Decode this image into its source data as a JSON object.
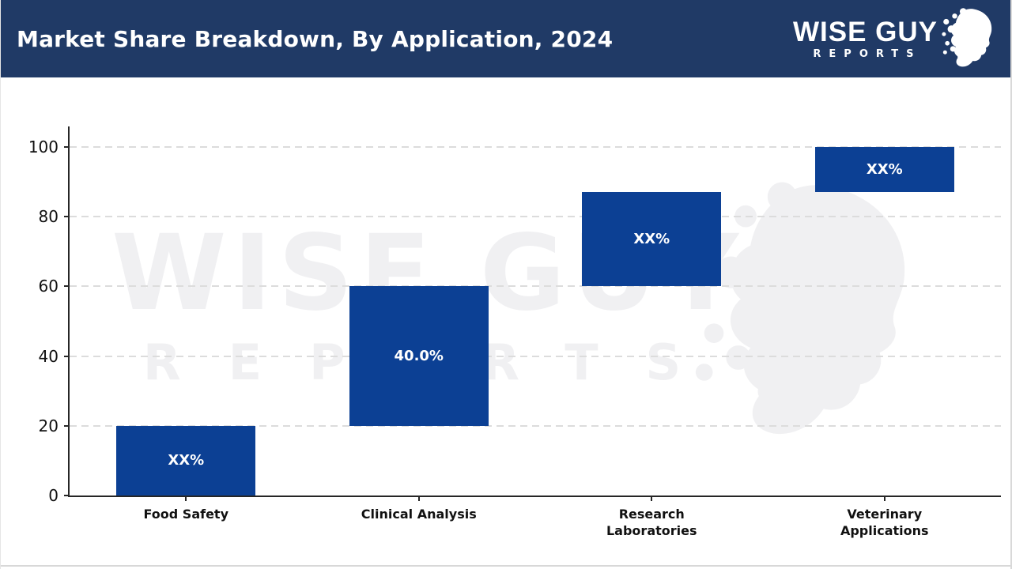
{
  "header": {
    "title": "Market Share Breakdown, By Application, 2024",
    "logo": {
      "line1": "WISE GUY",
      "line2": "REPORTS"
    }
  },
  "watermark": {
    "line1": "WISE GUY",
    "line2": "REPORTS"
  },
  "colors": {
    "header_bg": "#203a66",
    "bar": "#0c4094",
    "grid": "#dcdcdc",
    "axis": "#262626",
    "watermark": "#f0f0f2",
    "bar_label_text": "#ffffff"
  },
  "chart_data": {
    "type": "bar",
    "subtype": "waterfall-floating-segments",
    "title": "Market Share Breakdown, By Application, 2024",
    "categories": [
      "Food Safety",
      "Clinical Analysis",
      "Research\nLaboratories",
      "Veterinary\nApplications"
    ],
    "series": [
      {
        "name": "Market Share",
        "segments": [
          {
            "category": "Food Safety",
            "start": 0,
            "end": 20,
            "value": 20,
            "label": "XX%"
          },
          {
            "category": "Clinical Analysis",
            "start": 20,
            "end": 60,
            "value": 40,
            "label": "40.0%"
          },
          {
            "category": "Research Laboratories",
            "start": 60,
            "end": 87,
            "value": 27,
            "label": "XX%"
          },
          {
            "category": "Veterinary Applications",
            "start": 87,
            "end": 100,
            "value": 13,
            "label": "XX%"
          }
        ]
      }
    ],
    "xlabel": "",
    "ylabel": "",
    "yticks": [
      0,
      20,
      40,
      60,
      80,
      100
    ],
    "ylim": [
      0,
      105.8
    ],
    "grid": "dashed-horizontal",
    "legend": "none"
  }
}
